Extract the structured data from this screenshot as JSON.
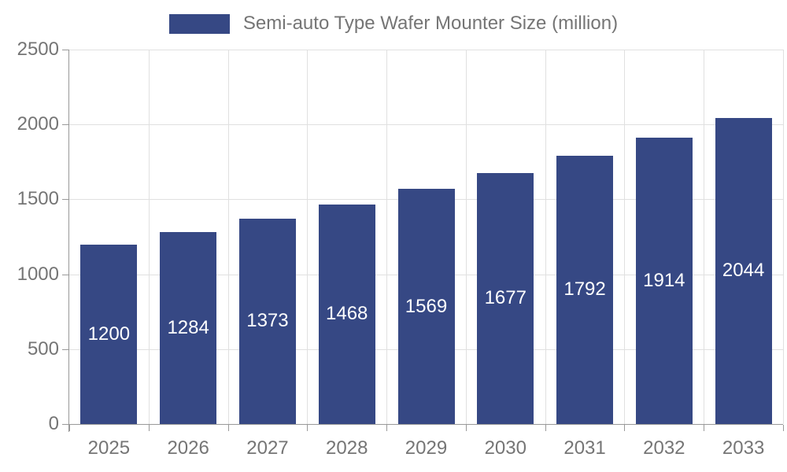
{
  "legend": {
    "label": "Semi-auto Type Wafer Mounter Size (million)",
    "swatch_color": "#364884"
  },
  "chart_data": {
    "type": "bar",
    "title": "",
    "xlabel": "",
    "ylabel": "",
    "categories": [
      "2025",
      "2026",
      "2027",
      "2028",
      "2029",
      "2030",
      "2031",
      "2032",
      "2033"
    ],
    "values": [
      1200,
      1284,
      1373,
      1468,
      1569,
      1677,
      1792,
      1914,
      2044
    ],
    "series_name": "Semi-auto Type Wafer Mounter Size (million)",
    "ylim": [
      0,
      2500
    ],
    "yticks": [
      0,
      500,
      1000,
      1500,
      2000,
      2500
    ],
    "grid": true,
    "legend_position": "top",
    "bar_color": "#364884",
    "bar_label_color": "#ffffff",
    "axis_text_color": "#757575",
    "axis_line_color": "#999999",
    "gridline_color": "#e0e0e0"
  }
}
